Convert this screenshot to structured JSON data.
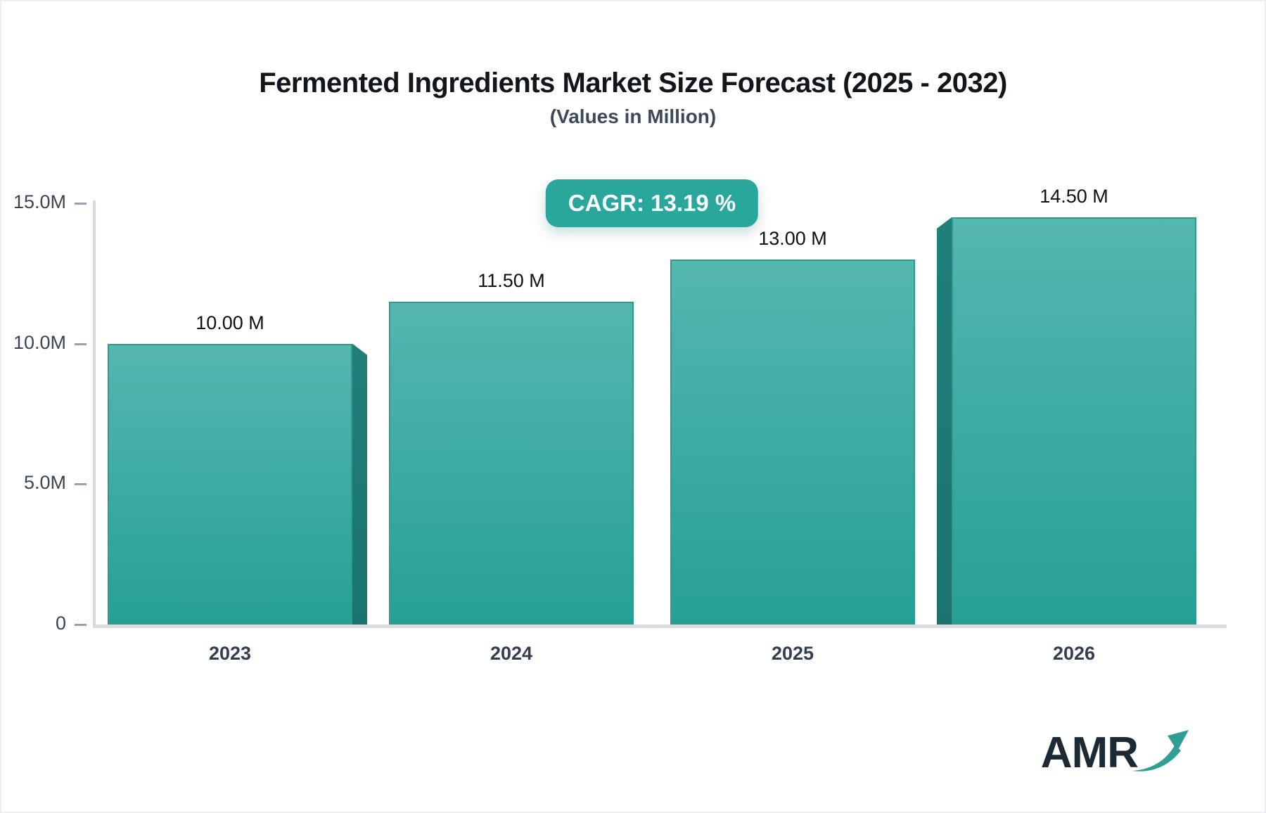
{
  "header": {
    "title": "Fermented Ingredients Market Size Forecast (2025 - 2032)",
    "subtitle": "(Values in Million)",
    "cagr_badge": "CAGR: 13.19 %"
  },
  "chart_data": {
    "type": "bar",
    "title": "Fermented Ingredients Market Size Forecast (2025 - 2032)",
    "subtitle": "(Values in Million)",
    "unit": "Million",
    "cagr_percent": 13.19,
    "categories": [
      "2023",
      "2024",
      "2025",
      "2026"
    ],
    "values": [
      10.0,
      11.5,
      13.0,
      14.5
    ],
    "bar_labels": [
      "10.00 M",
      "11.50 M",
      "13.00 M",
      "14.50 M"
    ],
    "ylim": [
      0,
      15
    ],
    "yticks": [
      {
        "label": "15.0M",
        "value": 15
      },
      {
        "label": "10.0M",
        "value": 10
      },
      {
        "label": "5.0M",
        "value": 5
      },
      {
        "label": "0",
        "value": 0
      }
    ],
    "grid": false,
    "legend": "none",
    "bevels": [
      "right",
      "none",
      "none",
      "left"
    ]
  },
  "colors": {
    "badge_bg": "#2aa79c",
    "bar_top": "#55b7ae",
    "bar_bottom": "#26a095",
    "bar_border": "#2e9a90",
    "bevel_dark": "#1f8078",
    "axis_line": "#d7dade",
    "tick": "#9aa3ad",
    "logo_navy": "#1b2a35",
    "logo_teal": "#2f9e95"
  },
  "footer": {
    "logo_text": "AMR"
  }
}
